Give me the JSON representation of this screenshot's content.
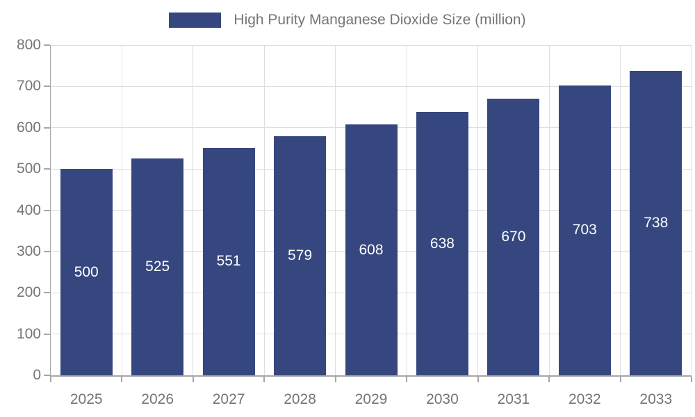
{
  "legend": {
    "label": "High Purity Manganese Dioxide Size (million)"
  },
  "colors": {
    "bar": "#36477f",
    "bar_label_text": "#ffffff",
    "axis_text": "#757575",
    "gridline": "#dedede",
    "axis_line": "#a6a6a6",
    "background": "#ffffff"
  },
  "chart_data": {
    "type": "bar",
    "title": "High Purity Manganese Dioxide Size (million)",
    "categories": [
      "2025",
      "2026",
      "2027",
      "2028",
      "2029",
      "2030",
      "2031",
      "2032",
      "2033"
    ],
    "values": [
      500,
      525,
      551,
      579,
      608,
      638,
      670,
      703,
      738
    ],
    "xlabel": "",
    "ylabel": "",
    "ylim": [
      0,
      800
    ],
    "yticks": [
      0,
      100,
      200,
      300,
      400,
      500,
      600,
      700,
      800
    ],
    "grid": true,
    "legend_position": "top",
    "value_labels": "inside-center"
  }
}
